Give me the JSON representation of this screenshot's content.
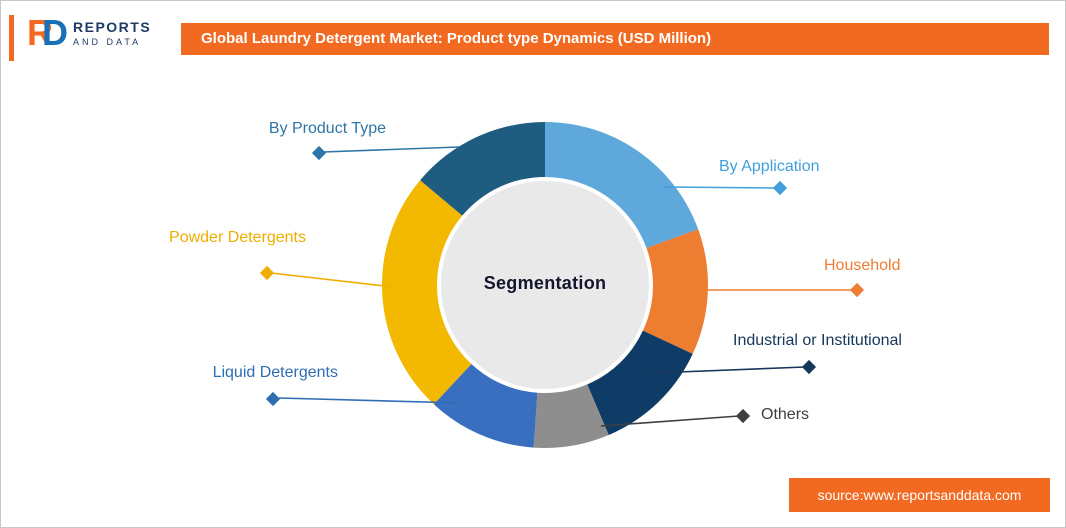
{
  "theme": {
    "accent": "#f26a21",
    "frame_border": "#c8c8c8"
  },
  "header": {
    "logo": {
      "letter_r": "R",
      "letter_d": "D",
      "letter_r_color": "#f26a21",
      "letter_d_color": "#1a6fb5",
      "line1": "REPORTS",
      "line2": "AND DATA",
      "text_color": "#1d3b66"
    },
    "banner_title": "Global Laundry Detergent Market: Product type Dynamics (USD Million)"
  },
  "chart": {
    "type": "donut",
    "center_label": "Segmentation",
    "inner_color": "#e9e9e9",
    "segments": [
      {
        "label": "By Application",
        "color": "#5fa8dc",
        "start_deg": 0,
        "end_deg": 70
      },
      {
        "label": "Household",
        "color": "#ed7d31",
        "start_deg": 70,
        "end_deg": 115
      },
      {
        "label": "Industrial or Institutional",
        "color": "#0f3c67",
        "start_deg": 115,
        "end_deg": 157
      },
      {
        "label": "Others",
        "color": "#8e8e8e",
        "start_deg": 157,
        "end_deg": 184
      },
      {
        "label": "Liquid Detergents",
        "color": "#3a6fbf",
        "start_deg": 184,
        "end_deg": 223
      },
      {
        "label": "Powder Detergents",
        "color": "#f3b800",
        "start_deg": 223,
        "end_deg": 310
      },
      {
        "label": "By Product Type",
        "color": "#1e5c80",
        "start_deg": 310,
        "end_deg": 360
      }
    ]
  },
  "callouts": [
    {
      "text": "By Product Type",
      "color": "#2e75a8"
    },
    {
      "text": "By Application",
      "color": "#41a0dc"
    },
    {
      "text": "Powder Detergents",
      "color": "#f0ad00"
    },
    {
      "text": "Household",
      "color": "#ed7d31"
    },
    {
      "text": "Industrial or Institutional",
      "color": "#16365c"
    },
    {
      "text": "Liquid Detergents",
      "color": "#2e6db4"
    },
    {
      "text": "Others",
      "color": "#3f3f3f"
    }
  ],
  "footer": {
    "source": "source:www.reportsanddata.com"
  }
}
